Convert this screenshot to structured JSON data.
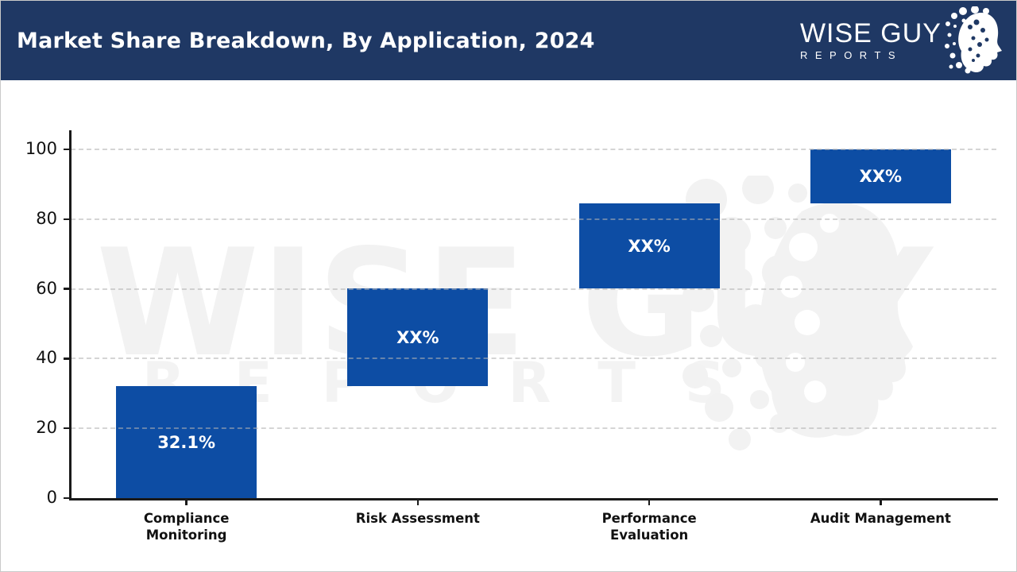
{
  "header": {
    "title": "Market Share Breakdown, By Application, 2024",
    "bg_color": "#1f3864",
    "logo": {
      "line1": "WISE GUY",
      "line2": "REPORTS"
    }
  },
  "watermark": {
    "line1": "WISE GUY",
    "line2": "REPORTS"
  },
  "chart_data": {
    "type": "bar",
    "subtype": "waterfall",
    "title": "Market Share Breakdown, By Application, 2024",
    "xlabel": "",
    "ylabel": "",
    "categories": [
      "Compliance Monitoring",
      "Risk Assessment",
      "Performance Evaluation",
      "Audit Management"
    ],
    "segments": [
      {
        "category": "Compliance Monitoring",
        "label_lines": [
          "Compliance",
          "Monitoring"
        ],
        "start": 0,
        "end": 32.1,
        "value_label": "32.1%"
      },
      {
        "category": "Risk Assessment",
        "label_lines": [
          "Risk Assessment"
        ],
        "start": 32.1,
        "end": 60.1,
        "value_label": "XX%"
      },
      {
        "category": "Performance Evaluation",
        "label_lines": [
          "Performance",
          "Evaluation"
        ],
        "start": 60.1,
        "end": 84.5,
        "value_label": "XX%"
      },
      {
        "category": "Audit Management",
        "label_lines": [
          "Audit Management"
        ],
        "start": 84.5,
        "end": 100,
        "value_label": "XX%"
      }
    ],
    "bar_color": "#0d4da4",
    "value_label_color": "#ffffff",
    "yticks": [
      0,
      20,
      40,
      60,
      80,
      100
    ],
    "ylim": [
      0,
      105
    ],
    "grid": "horizontal-dashed",
    "legend": "none"
  }
}
